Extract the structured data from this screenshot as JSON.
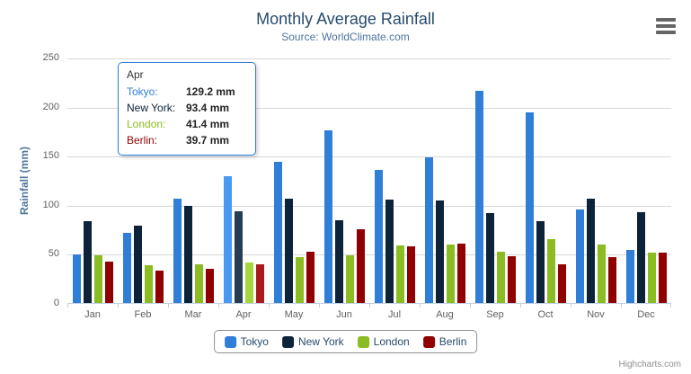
{
  "header": {
    "title": "Monthly Average Rainfall",
    "subtitle": "Source: WorldClimate.com"
  },
  "icons": {
    "export_menu": "hamburger-icon"
  },
  "chart_data": {
    "type": "bar",
    "title": "Monthly Average Rainfall",
    "subtitle": "Source: WorldClimate.com",
    "xlabel": "",
    "ylabel": "Rainfall (mm)",
    "ylim": [
      0,
      250
    ],
    "yticks": [
      0,
      50,
      100,
      150,
      200,
      250
    ],
    "grid": true,
    "legend_position": "bottom",
    "categories": [
      "Jan",
      "Feb",
      "Mar",
      "Apr",
      "May",
      "Jun",
      "Jul",
      "Aug",
      "Sep",
      "Oct",
      "Nov",
      "Dec"
    ],
    "hovered_category": "Apr",
    "series": [
      {
        "name": "Tokyo",
        "color": "#2f7ed8",
        "hover_color": "#4998f2",
        "values": [
          49.9,
          71.5,
          106.4,
          129.2,
          144.0,
          176.0,
          135.6,
          148.5,
          216.4,
          194.1,
          95.6,
          54.4
        ]
      },
      {
        "name": "New York",
        "color": "#0d233a",
        "hover_color": "#273d54",
        "values": [
          83.6,
          78.8,
          98.5,
          93.4,
          106.0,
          84.5,
          105.0,
          104.3,
          91.2,
          83.5,
          106.6,
          92.3
        ]
      },
      {
        "name": "London",
        "color": "#8bbc21",
        "hover_color": "#a5d63b",
        "values": [
          48.9,
          38.8,
          39.3,
          41.4,
          47.0,
          48.3,
          59.0,
          59.6,
          52.4,
          65.2,
          59.3,
          51.2
        ]
      },
      {
        "name": "Berlin",
        "color": "#910000",
        "hover_color": "#ab1a1a",
        "values": [
          42.4,
          33.2,
          34.5,
          39.7,
          52.6,
          75.5,
          57.4,
          60.4,
          47.6,
          39.1,
          46.8,
          51.1
        ]
      }
    ]
  },
  "tooltip": {
    "header": "Apr",
    "rows": [
      {
        "label": "Tokyo:",
        "value": "129.2 mm",
        "color": "#2f7ed8"
      },
      {
        "label": "New York:",
        "value": "93.4 mm",
        "color": "#0d233a"
      },
      {
        "label": "London:",
        "value": "41.4 mm",
        "color": "#8bbc21"
      },
      {
        "label": "Berlin:",
        "value": "39.7 mm",
        "color": "#910000"
      }
    ]
  },
  "credits": {
    "label": "Highcharts.com"
  }
}
